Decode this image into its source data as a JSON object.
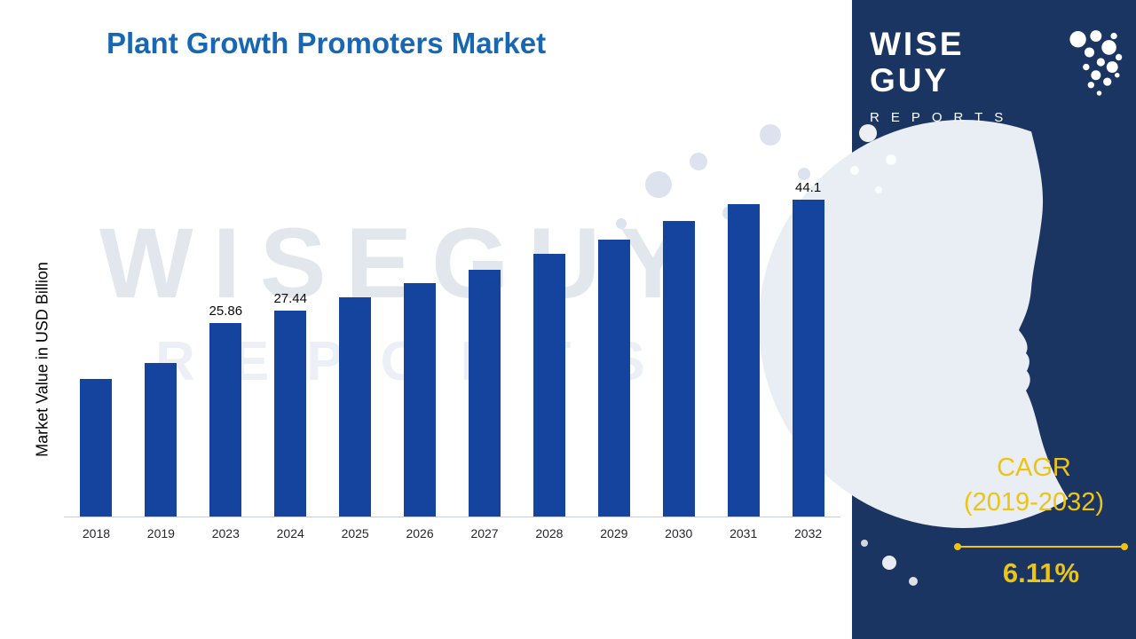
{
  "title": "Plant Growth Promoters Market",
  "brand": {
    "name": "WISE GUY",
    "sub": "REPORTS"
  },
  "watermark": {
    "line1": "WISEGUY",
    "line2": "REPORTS"
  },
  "cagr": {
    "label": "CAGR",
    "range": "(2019-2032)",
    "value": "6.11%"
  },
  "colors": {
    "gold": "#edc414",
    "bar": "#14449e",
    "sidebar": "#1b3562",
    "title": "#1767b5"
  },
  "chart_data": {
    "type": "bar",
    "title": "Plant Growth Promoters Market",
    "xlabel": "",
    "ylabel": "Market Value in USD Billion",
    "categories": [
      "2018",
      "2019",
      "2023",
      "2024",
      "2025",
      "2026",
      "2027",
      "2028",
      "2029",
      "2030",
      "2031",
      "2032"
    ],
    "values": [
      18.4,
      20.5,
      25.86,
      27.44,
      29.2,
      31.1,
      32.9,
      35.0,
      37.0,
      39.4,
      41.7,
      44.1
    ],
    "data_labels": [
      "",
      "",
      "25.86",
      "27.44",
      "",
      "",
      "",
      "",
      "",
      "",
      "",
      "44.1"
    ],
    "ylim": [
      0,
      45
    ],
    "grid": false,
    "legend": false,
    "bar_color": "#14449e",
    "unit": "USD Billion"
  }
}
